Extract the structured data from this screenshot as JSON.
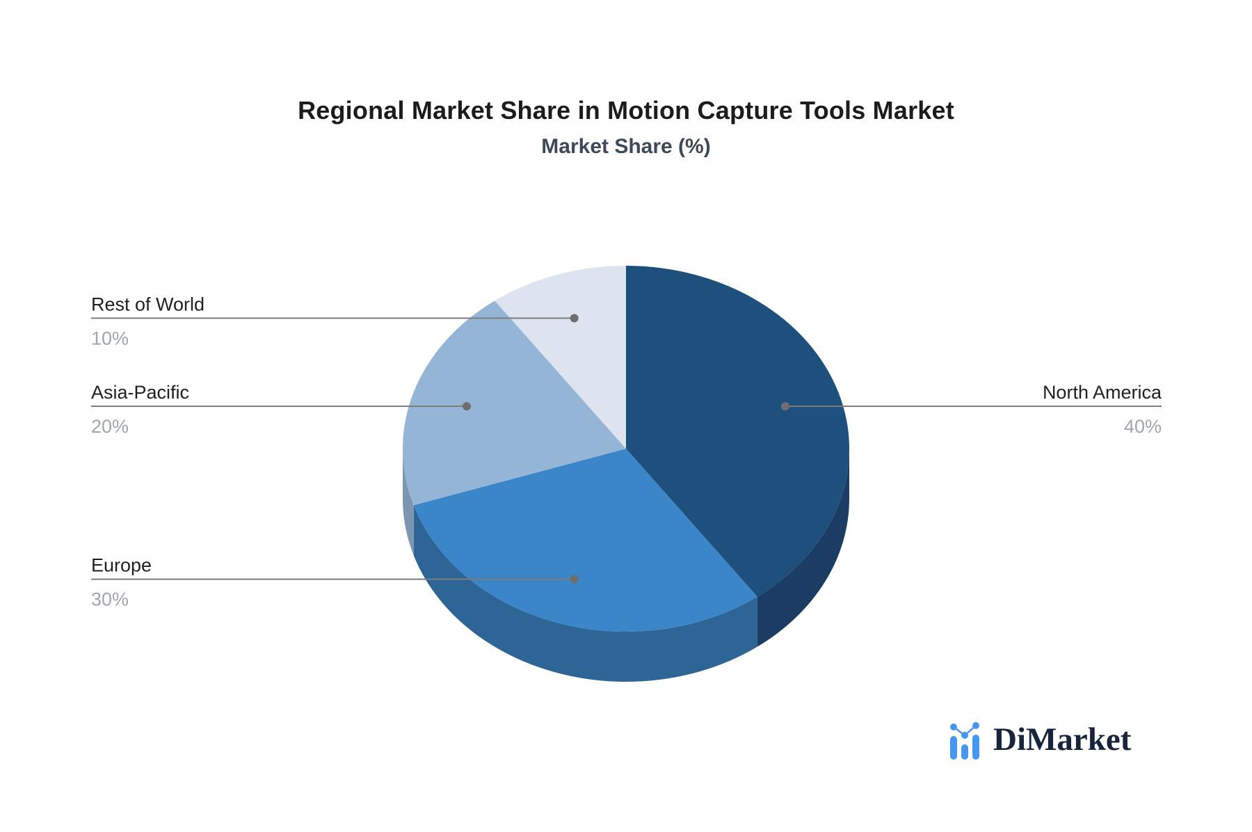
{
  "page": {
    "background": "#ffffff"
  },
  "header": {
    "title": "Regional Market Share in Motion Capture Tools Market",
    "subtitle": "Market Share (%)",
    "title_color": "#1c1c1c",
    "subtitle_color": "#3d4858"
  },
  "brand": {
    "name": "DiMarket",
    "text_color": "#16243d",
    "icon_color": "#4597f2",
    "icon": "bar-line-chart-icon"
  },
  "chart_data": {
    "type": "pie",
    "title": "Regional Market Share in Motion Capture Tools Market",
    "subtitle": "Market Share (%)",
    "unit": "%",
    "effect": "3d",
    "start_angle_deg": 0,
    "direction": "clockwise",
    "legend_position": "callout-lines",
    "categories": [
      "North America",
      "Europe",
      "Asia-Pacific",
      "Rest of World"
    ],
    "values": [
      40,
      30,
      20,
      10
    ],
    "slices": [
      {
        "label": "North America",
        "value": 40,
        "display_value": "40%",
        "color": "#1e507e",
        "side_color": "#1b3d63",
        "callout_side": "right"
      },
      {
        "label": "Europe",
        "value": 30,
        "display_value": "30%",
        "color": "#3a86c9",
        "side_color": "#2d6596",
        "callout_side": "left"
      },
      {
        "label": "Asia-Pacific",
        "value": 20,
        "display_value": "20%",
        "color": "#94b5d6",
        "side_color": "#7c95b0",
        "callout_side": "left"
      },
      {
        "label": "Rest of World",
        "value": 10,
        "display_value": "10%",
        "color": "#dde4ef",
        "side_color": "#c2cde0",
        "callout_side": "left"
      }
    ],
    "style": {
      "callout_line_color": "#7d7d7d",
      "callout_dot_color": "#6e6e6e",
      "label_color": "#1f1f1f",
      "value_color": "#a0a6ac"
    }
  }
}
